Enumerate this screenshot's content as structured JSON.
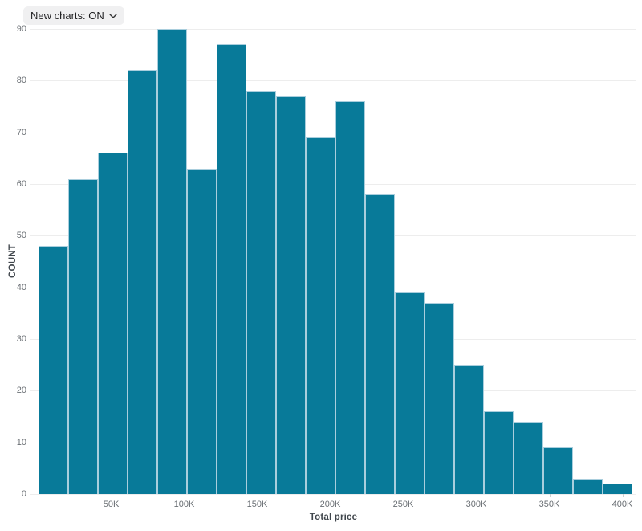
{
  "controls": {
    "new_charts_toggle": {
      "label": "New charts: ON",
      "icon": "chevron-down-icon"
    }
  },
  "chart_data": {
    "type": "bar",
    "subtype": "histogram",
    "title": "",
    "xlabel": "Total price",
    "ylabel": "COUNT",
    "bin_start": 0,
    "bin_width": 20000,
    "values": [
      48,
      61,
      66,
      82,
      90,
      63,
      87,
      78,
      77,
      69,
      76,
      58,
      39,
      37,
      25,
      16,
      14,
      9,
      3,
      2
    ],
    "total_count": 1000,
    "x_ticks": [
      {
        "label": "50K",
        "value": 50000
      },
      {
        "label": "100K",
        "value": 100000
      },
      {
        "label": "150K",
        "value": 150000
      },
      {
        "label": "200K",
        "value": 200000
      },
      {
        "label": "250K",
        "value": 250000
      },
      {
        "label": "300K",
        "value": 300000
      },
      {
        "label": "350K",
        "value": 350000
      },
      {
        "label": "400K",
        "value": 400000
      }
    ],
    "y_ticks": [
      0,
      10,
      20,
      30,
      40,
      50,
      60,
      70,
      80,
      90
    ],
    "ylim": [
      0,
      90
    ],
    "grid": "horizontal",
    "legend": "none",
    "colors": {
      "bar_fill": "#087a99",
      "bar_stroke": "#a9cedd",
      "gridline": "#ededed",
      "tick_label": "#6a6f74",
      "axis_title": "#40464c",
      "background": "#ffffff",
      "control_bg": "#f0f0f1",
      "control_text": "#1d1d1f"
    }
  }
}
